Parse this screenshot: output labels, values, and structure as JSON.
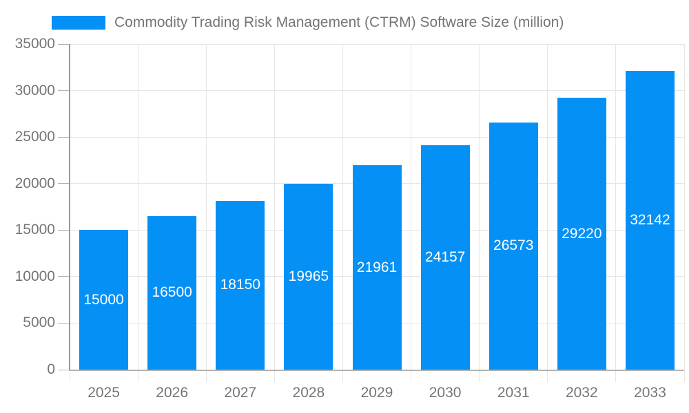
{
  "legend": {
    "title": "Commodity Trading Risk Management (CTRM) Software Size (million)"
  },
  "chart_data": {
    "type": "bar",
    "title": "Commodity Trading Risk Management (CTRM) Software Size (million)",
    "series_name": "Commodity Trading Risk Management (CTRM) Software Size (million)",
    "categories": [
      "2025",
      "2026",
      "2027",
      "2028",
      "2029",
      "2030",
      "2031",
      "2032",
      "2033"
    ],
    "values": [
      15000,
      16500,
      18150,
      19965,
      21961,
      24157,
      26573,
      29220,
      32142
    ],
    "value_labels": [
      "15000",
      "16500",
      "18150",
      "19965",
      "21961",
      "24157",
      "26573",
      "29220",
      "32142"
    ],
    "xlabel": "",
    "ylabel": "",
    "ylim": [
      0,
      35000
    ],
    "yticks": [
      0,
      5000,
      10000,
      15000,
      20000,
      25000,
      30000,
      35000
    ],
    "grid": true,
    "legend_position": "top-left",
    "value_label_position": "inside-center"
  },
  "colors": {
    "bar": "#0590f5",
    "value_label": "#ffffff",
    "grid": "#e6e6e6",
    "x_tick": "#e6e6e6",
    "y_tick": "#b3b3b3",
    "axis_left": "#999999",
    "axis_bottom": "#b3b3b3",
    "tick_label": "#757575",
    "legend_text": "#757575",
    "background": "#ffffff"
  }
}
